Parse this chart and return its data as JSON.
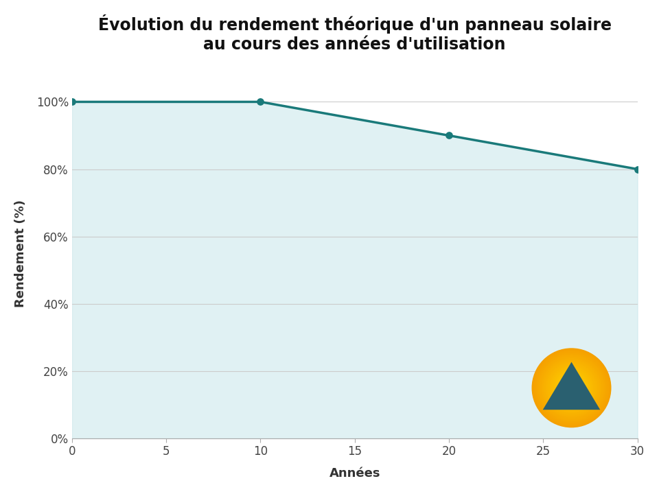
{
  "title_line1": "Évolution du rendement théorique d'un panneau solaire",
  "title_line2": "au cours des années d'utilisation",
  "xlabel": "Années",
  "ylabel": "Rendement (%)",
  "x": [
    0,
    10,
    20,
    30
  ],
  "y": [
    100,
    100,
    90,
    80
  ],
  "line_color": "#1a7a7a",
  "fill_color": "#c8e6ea",
  "marker_color": "#1a7a7a",
  "xlim": [
    0,
    30
  ],
  "ylim": [
    0,
    110
  ],
  "xticks": [
    0,
    5,
    10,
    15,
    20,
    25,
    30
  ],
  "ytick_values": [
    0,
    20,
    40,
    60,
    80,
    100
  ],
  "ytick_labels": [
    "0%",
    "20%",
    "40%",
    "60%",
    "80%",
    "100%"
  ],
  "background_color": "#ffffff",
  "grid_color": "#cccccc",
  "title_fontsize": 17,
  "axis_label_fontsize": 13,
  "tick_fontsize": 12,
  "sun_color_inner": "#FFD700",
  "sun_color_outer": "#F5A000",
  "triangle_color": "#2a6070"
}
